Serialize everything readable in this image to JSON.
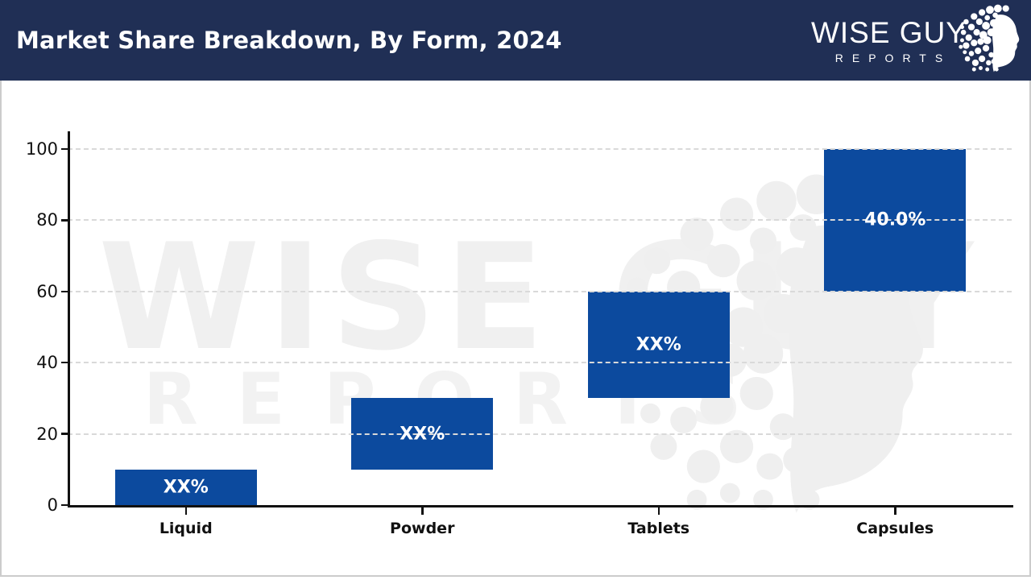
{
  "header": {
    "bg_color": "#202F55",
    "title": "Market Share Breakdown, By Form, 2024",
    "logo": {
      "line1": "WISE GUY",
      "line2": "REPORTS"
    }
  },
  "watermark": {
    "line1": "WISE GUY",
    "line2": "REPORTS"
  },
  "chart_data": {
    "type": "bar",
    "subtype": "waterfall",
    "title": "Market Share Breakdown, By Form, 2024",
    "categories": [
      "Liquid",
      "Powder",
      "Tablets",
      "Capsules"
    ],
    "segments": [
      {
        "category": "Liquid",
        "base": 0,
        "top": 10,
        "label": "XX%"
      },
      {
        "category": "Powder",
        "base": 10,
        "top": 30,
        "label": "XX%"
      },
      {
        "category": "Tablets",
        "base": 30,
        "top": 60,
        "label": "XX%"
      },
      {
        "category": "Capsules",
        "base": 60,
        "top": 100,
        "label": "40.0%"
      }
    ],
    "yticks": [
      0,
      20,
      40,
      60,
      80,
      100
    ],
    "ylim": [
      0,
      105
    ],
    "xlabel": "",
    "ylabel": "",
    "grid": "horizontal-dashed",
    "legend": "none",
    "bar_color": "#0C4A9E",
    "bar_label_color": "#FFFFFF",
    "axis_color": "#111111",
    "grid_color": "#D9D9D9"
  }
}
